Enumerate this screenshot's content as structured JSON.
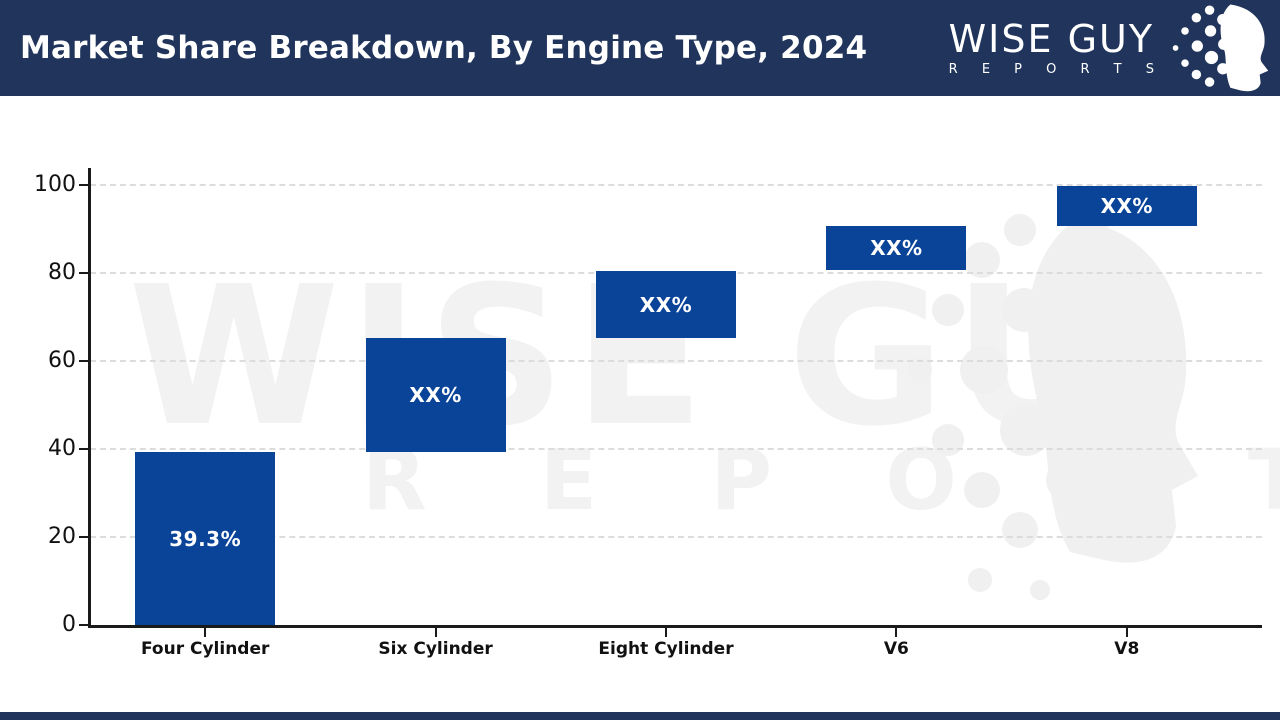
{
  "header": {
    "title": "Market Share Breakdown, By Engine Type, 2024",
    "logo": {
      "line1": "WISE GUY",
      "line2": "R E P O R T S"
    }
  },
  "watermark": {
    "line1": "WISE GU",
    "line2": "R E P O R T"
  },
  "colors": {
    "header_bg": "#21355c",
    "bar_blue": "#0a4499",
    "gridline": "#dcdcdc",
    "axis": "#1a1a1a",
    "watermark": "#f2f2f2",
    "label_on_bar": "#ffffff"
  },
  "chart_data": {
    "type": "bar",
    "subtype": "waterfall",
    "title": "Market Share Breakdown, By Engine Type, 2024",
    "xlabel": "",
    "ylabel": "",
    "ylim": [
      0,
      105
    ],
    "yticks": [
      0,
      20,
      40,
      60,
      80,
      100
    ],
    "grid": "horizontal-dashed",
    "legend": "none",
    "categories": [
      "Four Cylinder",
      "Six Cylinder",
      "Eight Cylinder",
      "V6",
      "V8"
    ],
    "segments": [
      {
        "category": "Four Cylinder",
        "start": 0,
        "end": 39.3,
        "label": "39.3%"
      },
      {
        "category": "Six Cylinder",
        "start": 39.3,
        "end": 65.2,
        "label": "XX%"
      },
      {
        "category": "Eight Cylinder",
        "start": 65.2,
        "end": 80.4,
        "label": "XX%"
      },
      {
        "category": "V6",
        "start": 80.6,
        "end": 90.7,
        "label": "XX%"
      },
      {
        "category": "V8",
        "start": 90.6,
        "end": 99.8,
        "label": "XX%"
      }
    ]
  }
}
